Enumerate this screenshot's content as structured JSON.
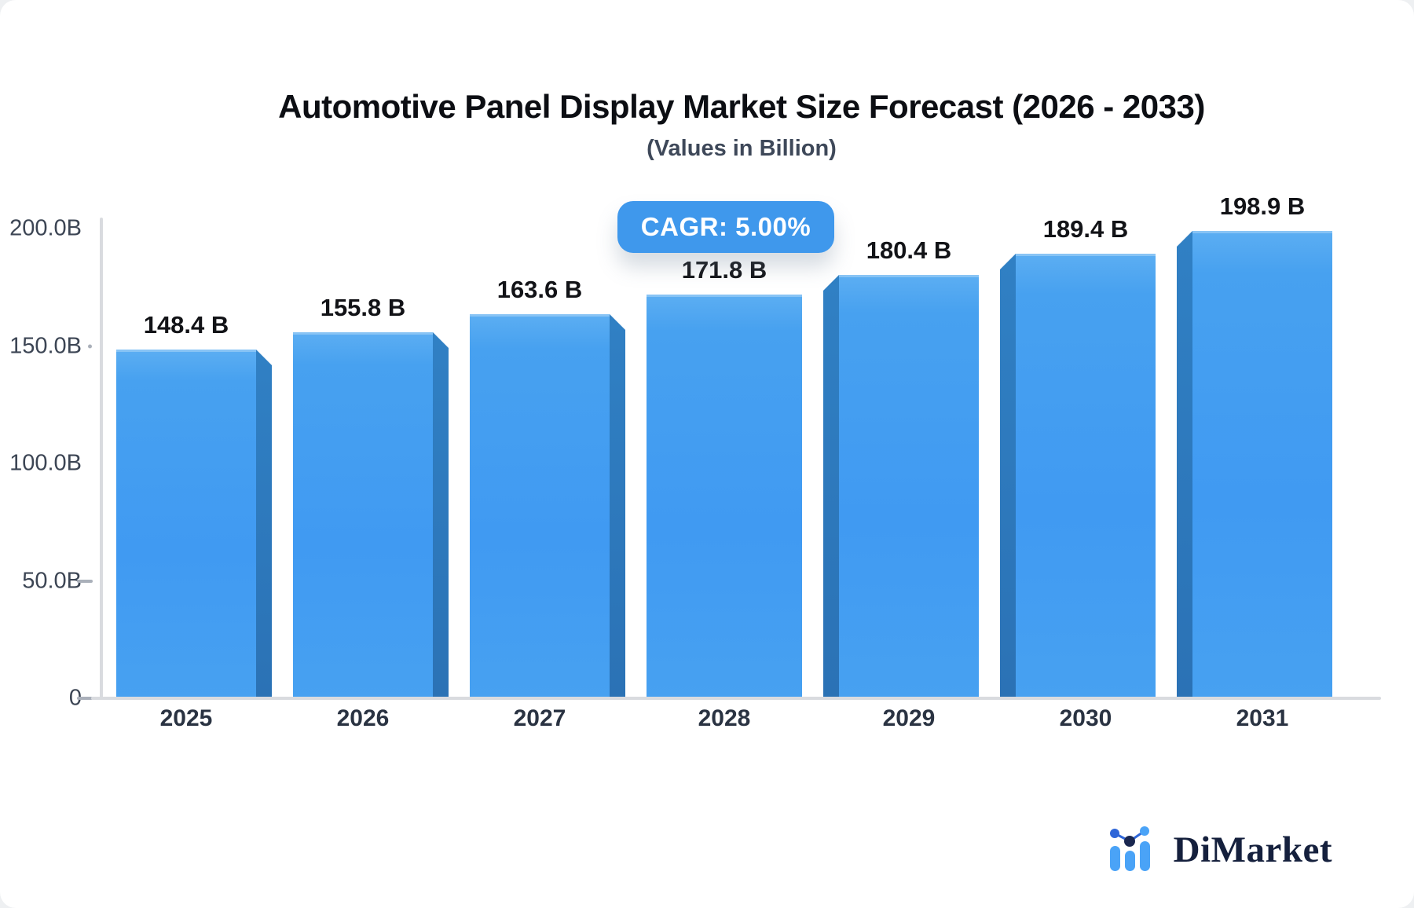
{
  "header": {
    "title": "Automotive Panel Display Market Size Forecast (2026 - 2033)",
    "subtitle": "(Values in Billion)"
  },
  "badge": {
    "label": "CAGR: 5.00%",
    "background": "#3f98ec",
    "text_color": "#ffffff"
  },
  "chart_data": {
    "type": "bar",
    "title": "Automotive Panel Display Market Size Forecast (2026 - 2033)",
    "subtitle": "(Values in Billion)",
    "categories": [
      "2025",
      "2026",
      "2027",
      "2028",
      "2029",
      "2030",
      "2031"
    ],
    "values": [
      148.4,
      155.8,
      163.6,
      171.8,
      180.4,
      189.4,
      198.9
    ],
    "value_labels": [
      "148.4 B",
      "155.8 B",
      "163.6 B",
      "171.8 B",
      "180.4 B",
      "189.4 B",
      "198.9 B"
    ],
    "annotation": "CAGR: 5.00%",
    "xlabel": "",
    "ylabel": "",
    "ylim": [
      0,
      200
    ],
    "grid": false,
    "legend": "none",
    "y_ticks": [
      {
        "label": "200.0B",
        "value": 200,
        "mark": "none"
      },
      {
        "label": "150.0B",
        "value": 150,
        "mark": "dot"
      },
      {
        "label": "100.0B",
        "value": 100,
        "mark": "none"
      },
      {
        "label": "50.0B",
        "value": 50,
        "mark": "dash"
      },
      {
        "label": "0",
        "value": 0,
        "mark": "dash"
      }
    ],
    "bar_colors": {
      "face_top": "#5caef2",
      "face_main": "#409af2",
      "side": "#2d77bc"
    },
    "axis_color": "#d9dbdf"
  },
  "logo": {
    "text": "DiMarket",
    "icon": "bar-chart-trend-icon",
    "text_color": "#15203d",
    "bar_color": "#4aa3f7",
    "dot_colors": [
      "#2f66d8",
      "#1a2750",
      "#4aa3f7"
    ]
  }
}
